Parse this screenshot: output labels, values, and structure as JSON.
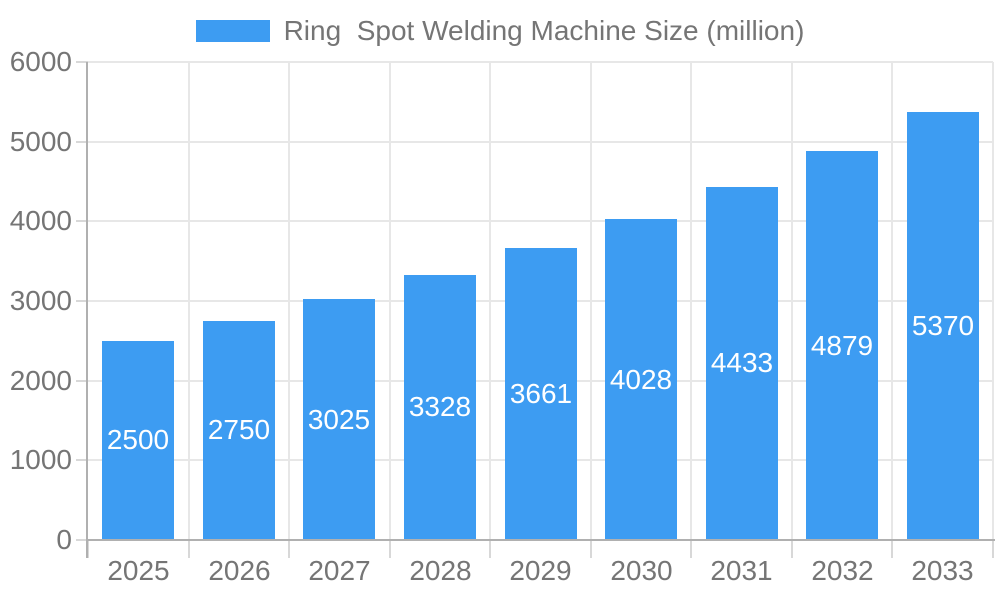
{
  "chart_data": {
    "type": "bar",
    "title": "Ring  Spot Welding Machine Size (million)",
    "categories": [
      "2025",
      "2026",
      "2027",
      "2028",
      "2029",
      "2030",
      "2031",
      "2032",
      "2033"
    ],
    "values": [
      2500,
      2750,
      3025,
      3328,
      3661,
      4028,
      4433,
      4879,
      5370
    ],
    "xlabel": "",
    "ylabel": "",
    "ylim": [
      0,
      6000
    ],
    "yticks": [
      0,
      1000,
      2000,
      3000,
      4000,
      5000,
      6000
    ],
    "grid": true,
    "legend_position": "top",
    "value_labels_position": "inside-center",
    "colors": {
      "bar": "#3D9CF2",
      "bar_label": "#FFFFFF",
      "axis_text": "#757575",
      "grid": "#E7E7E7",
      "axis_line": "#B0B0B0",
      "tick": "#D8D8D8",
      "background": "#FFFFFF"
    }
  }
}
